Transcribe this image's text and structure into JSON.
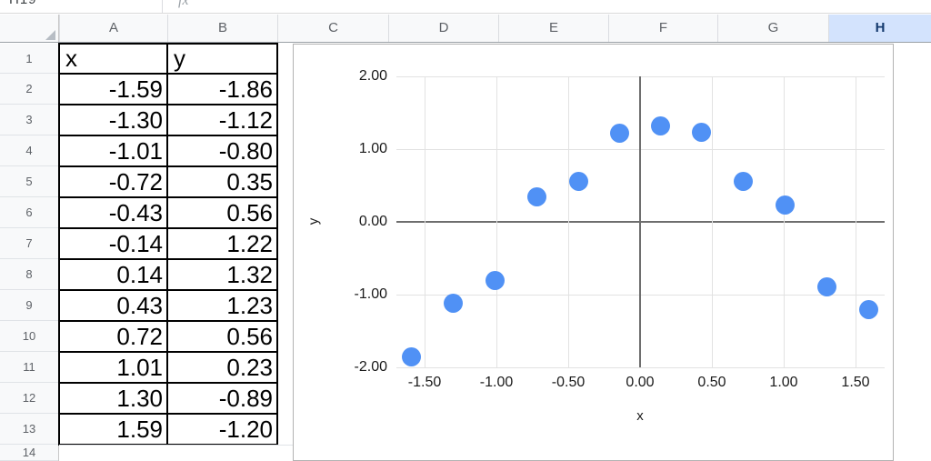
{
  "formula_bar": {
    "name_box_clipped": "H19",
    "fx_icon": "fx"
  },
  "sheet": {
    "columns": [
      "A",
      "B",
      "C",
      "D",
      "E",
      "F",
      "G",
      "H"
    ],
    "selected_column": "H",
    "row_numbers": [
      "1",
      "2",
      "3",
      "4",
      "5",
      "6",
      "7",
      "8",
      "9",
      "10",
      "11",
      "12",
      "13",
      "14"
    ],
    "table": {
      "headers": [
        "x",
        "y"
      ],
      "rows": [
        [
          "-1.59",
          "-1.86"
        ],
        [
          "-1.30",
          "-1.12"
        ],
        [
          "-1.01",
          "-0.80"
        ],
        [
          "-0.72",
          "0.35"
        ],
        [
          "-0.43",
          "0.56"
        ],
        [
          "-0.14",
          "1.22"
        ],
        [
          "0.14",
          "1.32"
        ],
        [
          "0.43",
          "1.23"
        ],
        [
          "0.72",
          "0.56"
        ],
        [
          "1.01",
          "0.23"
        ],
        [
          "1.30",
          "-0.89"
        ],
        [
          "1.59",
          "-1.20"
        ]
      ]
    }
  },
  "colors": {
    "selected_header_bg": "#d3e3fd",
    "selected_header_text": "#143a6e",
    "header_text": "#5f6368",
    "table_border": "#000000",
    "chart_point": "#5091f5",
    "chart_grid": "#e2e2e2",
    "chart_zero_axis": "#6e6e6e"
  },
  "chart_data": {
    "type": "scatter",
    "title": "",
    "xlabel": "x",
    "ylabel": "y",
    "xlim": [
      -1.7,
      1.7
    ],
    "ylim": [
      -2.0,
      2.0
    ],
    "grid": true,
    "legend": "none",
    "point_color": "#5091f5",
    "x_ticks": [
      "-1.50",
      "-1.00",
      "-0.50",
      "0.00",
      "0.50",
      "1.00",
      "1.50"
    ],
    "y_ticks": [
      "2.00",
      "1.00",
      "0.00",
      "-1.00",
      "-2.00"
    ],
    "series": [
      {
        "name": "y",
        "points": [
          [
            -1.59,
            -1.86
          ],
          [
            -1.3,
            -1.12
          ],
          [
            -1.01,
            -0.8
          ],
          [
            -0.72,
            0.35
          ],
          [
            -0.43,
            0.56
          ],
          [
            -0.14,
            1.22
          ],
          [
            0.14,
            1.32
          ],
          [
            0.43,
            1.23
          ],
          [
            0.72,
            0.56
          ],
          [
            1.01,
            0.23
          ],
          [
            1.3,
            -0.89
          ],
          [
            1.59,
            -1.2
          ]
        ]
      }
    ]
  }
}
